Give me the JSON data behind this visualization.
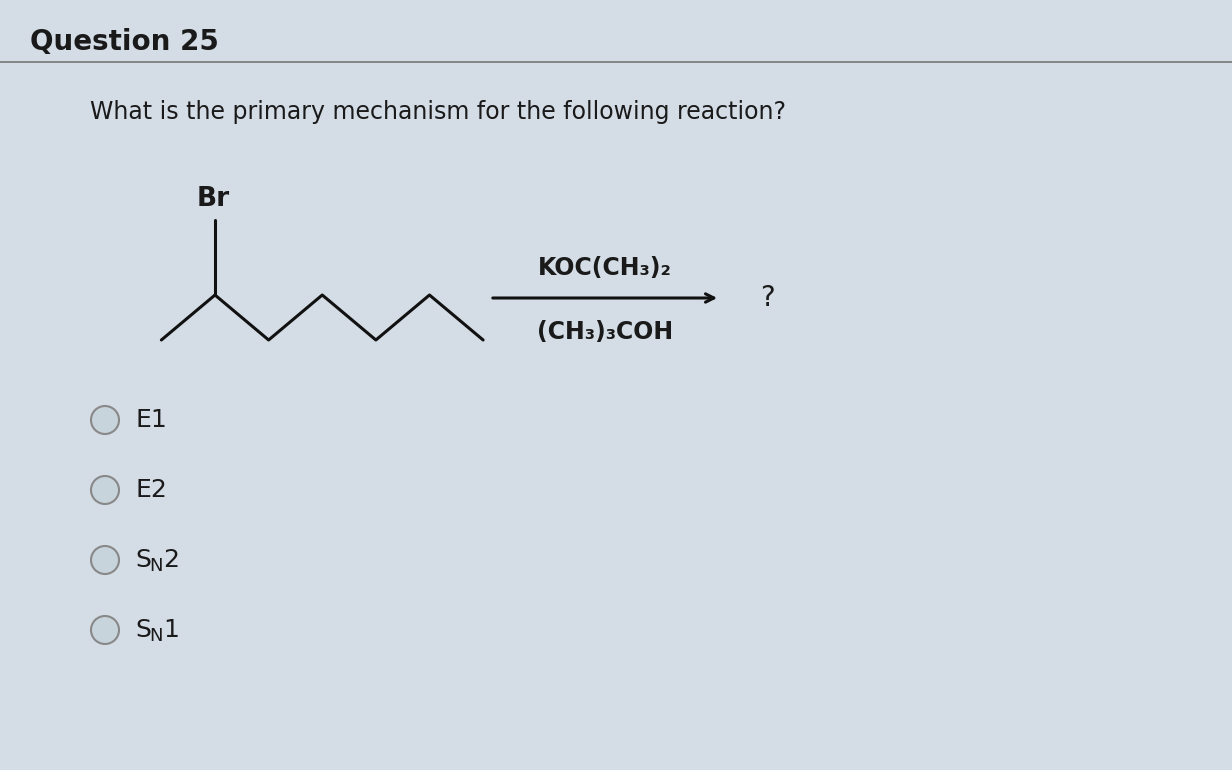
{
  "title": "Question 25",
  "question": "What is the primary mechanism for the following reaction?",
  "background_color": "#d4dde6",
  "text_color": "#1a1a1a",
  "options": [
    "E1",
    "E2",
    "SN2",
    "SN1"
  ],
  "reagent_line1": "KOC(CH₃)₂",
  "reagent_line2": "(CH₃)₃COH",
  "question_mark": "?",
  "title_fontsize": 20,
  "question_fontsize": 17,
  "option_fontsize": 18,
  "reagent_fontsize": 17,
  "br_fontsize": 19,
  "radio_edge_color": "#888888",
  "radio_face_color": "#c8d4dc"
}
